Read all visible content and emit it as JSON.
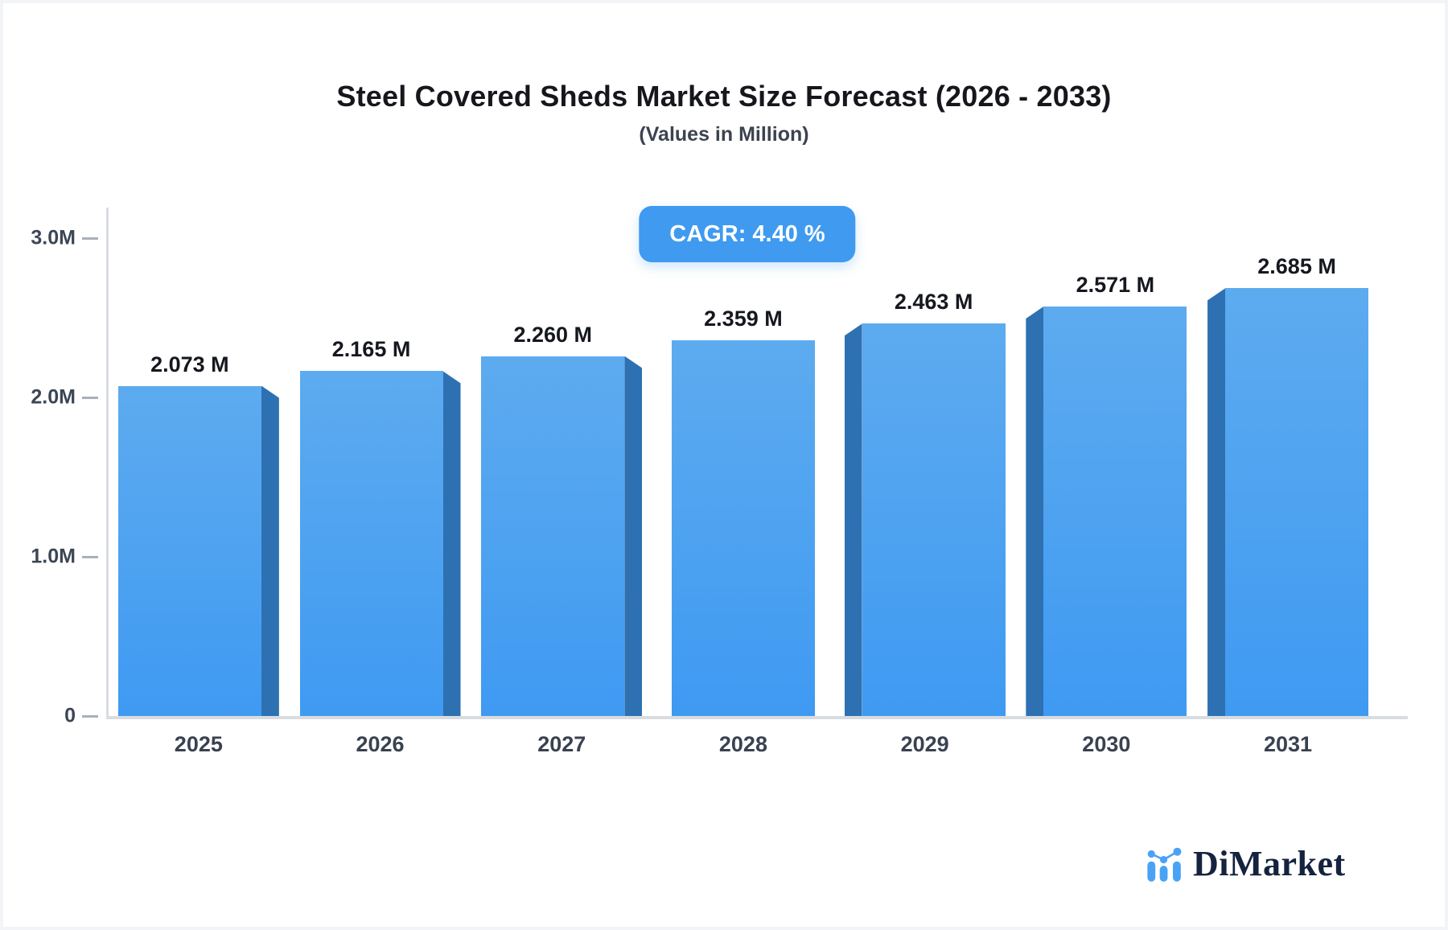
{
  "title": "Steel Covered Sheds Market Size Forecast (2026 - 2033)",
  "subtitle": "(Values in Million)",
  "cagr_badge": "CAGR: 4.40 %",
  "logo": {
    "name": "DiMarket"
  },
  "colors": {
    "bar_face_top": "#5dabef",
    "bar_face_bottom": "#3f9af2",
    "bar_side": "#2d71b2",
    "badge_blue": "#3f9af0",
    "axis_line": "#d9dce1",
    "tick_dash": "#a9b0ba",
    "title_text": "#15171c",
    "axis_text": "#3a4150",
    "logo_icon_blue": "#4aa2f7",
    "logo_text_navy": "#15233f"
  },
  "chart_data": {
    "type": "bar",
    "title": "Steel Covered Sheds Market Size Forecast (2026 - 2033)",
    "subtitle": "(Values in Million)",
    "categories": [
      "2025",
      "2026",
      "2027",
      "2028",
      "2029",
      "2030",
      "2031"
    ],
    "values": [
      2.073,
      2.165,
      2.26,
      2.359,
      2.463,
      2.571,
      2.685
    ],
    "value_labels": [
      "2.073 M",
      "2.165 M",
      "2.260 M",
      "2.359 M",
      "2.463 M",
      "2.571 M",
      "2.685 M"
    ],
    "unit": "Million",
    "xlabel": "",
    "ylabel": "",
    "ylim": [
      0,
      3.0
    ],
    "yticks": [
      {
        "value": 3.0,
        "label": "3.0M"
      },
      {
        "value": 2.0,
        "label": "2.0M"
      },
      {
        "value": 1.0,
        "label": "1.0M"
      },
      {
        "value": 0,
        "label": "0"
      }
    ],
    "grid": false,
    "legend": false,
    "annotations": [
      "CAGR: 4.40 %"
    ],
    "style": "3d-extruded-bars"
  }
}
